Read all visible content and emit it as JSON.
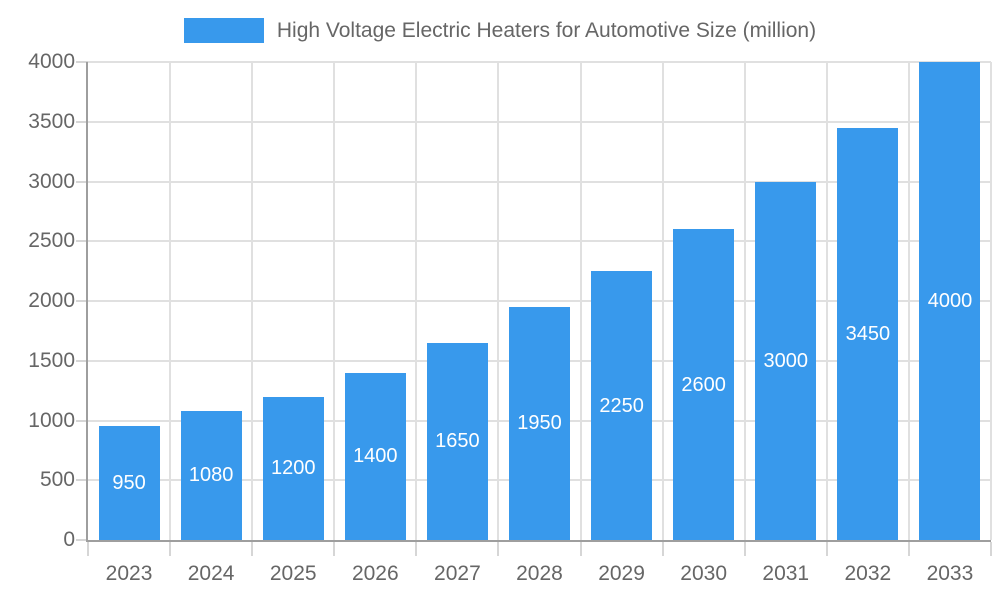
{
  "legend": {
    "label": "High Voltage Electric Heaters for Automotive Size (million)"
  },
  "chart_data": {
    "type": "bar",
    "title": "High Voltage Electric Heaters for Automotive Size (million)",
    "categories": [
      "2023",
      "2024",
      "2025",
      "2026",
      "2027",
      "2028",
      "2029",
      "2030",
      "2031",
      "2032",
      "2033"
    ],
    "values": [
      950,
      1080,
      1200,
      1400,
      1650,
      1950,
      2250,
      2600,
      3000,
      3450,
      4000
    ],
    "xlabel": "",
    "ylabel": "",
    "ylim": [
      0,
      4000
    ],
    "ytick_step": 500,
    "ytick_labels": [
      "0",
      "500",
      "1000",
      "1500",
      "2000",
      "2500",
      "3000",
      "3500",
      "4000"
    ],
    "grid": true,
    "legend_position": "top-center",
    "value_labels": "inside-center",
    "colors": {
      "bar": "#3899ec",
      "value_text": "#ffffff",
      "axis_text": "#666666",
      "grid_line": "#e0e0e0",
      "axis_line": "#9e9e9e",
      "tick_line": "#d6d6d6"
    }
  }
}
